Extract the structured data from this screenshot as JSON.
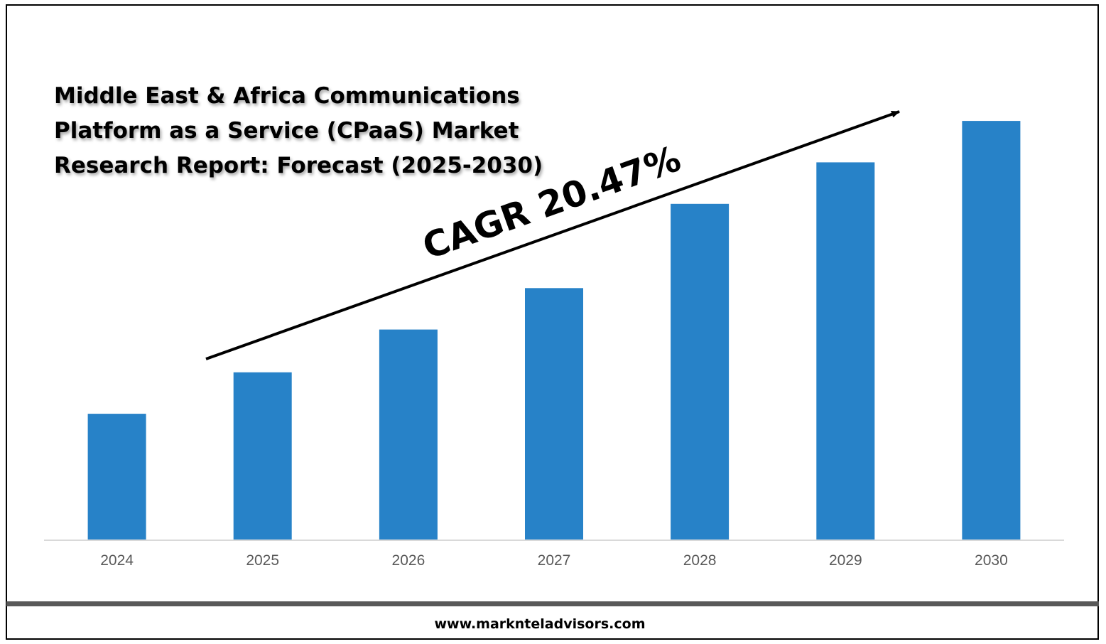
{
  "chart_data": {
    "type": "bar",
    "title_lines": [
      "Middle East & Africa Communications",
      "Platform as a Service (CPaaS) Market",
      "Research Report: Forecast (2025-2030)"
    ],
    "categories": [
      "2024",
      "2025",
      "2026",
      "2027",
      "2028",
      "2029",
      "2030"
    ],
    "values": [
      1.0,
      1.33,
      1.67,
      2.0,
      2.67,
      3.0,
      3.33
    ],
    "ylim": [
      0,
      3.5
    ],
    "xlabel": "",
    "ylabel": "",
    "grid": false,
    "legend": "none",
    "bar_color": "#2782C8",
    "annotation": "CAGR 20.47%"
  },
  "footer": {
    "website": "www.marknteladvisors.com"
  }
}
